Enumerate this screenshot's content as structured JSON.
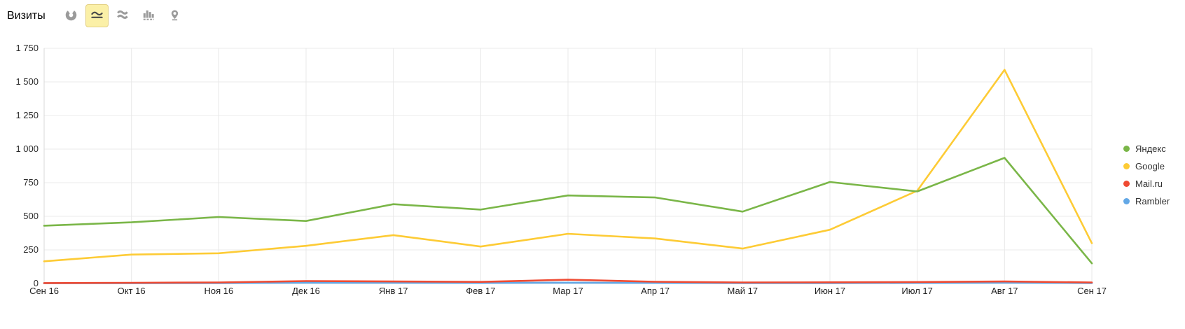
{
  "header": {
    "title": "Визиты",
    "toolbar": [
      {
        "icon": "pie-chart-icon",
        "selected": false
      },
      {
        "icon": "line-chart-icon",
        "selected": true
      },
      {
        "icon": "stacked-area-icon",
        "selected": false
      },
      {
        "icon": "column-chart-icon",
        "selected": false
      },
      {
        "icon": "map-pin-icon",
        "selected": false
      }
    ]
  },
  "chart_data": {
    "type": "line",
    "title": "Визиты",
    "x_labels": [
      "Сен 16",
      "Окт 16",
      "Ноя 16",
      "Дек 16",
      "Янв 17",
      "Фев 17",
      "Мар 17",
      "Апр 17",
      "Май 17",
      "Июн 17",
      "Июл 17",
      "Авг 17",
      "Сен 17"
    ],
    "y_tick_labels": [
      "1 750",
      "1 500",
      "1 250",
      "1 000",
      "750",
      "500",
      "250",
      "0"
    ],
    "ylim": [
      0,
      1750
    ],
    "y_tick_step": 250,
    "grid": true,
    "legend_position": "right",
    "series": [
      {
        "name": "Яндекс",
        "color": "#7AB648",
        "values": [
          430,
          455,
          495,
          465,
          590,
          550,
          655,
          640,
          535,
          755,
          685,
          935,
          150
        ]
      },
      {
        "name": "Google",
        "color": "#FDCB35",
        "values": [
          165,
          215,
          225,
          280,
          360,
          275,
          370,
          335,
          260,
          400,
          690,
          1590,
          300
        ]
      },
      {
        "name": "Mail.ru",
        "color": "#EF4A32",
        "values": [
          3,
          5,
          8,
          18,
          15,
          12,
          28,
          13,
          8,
          9,
          11,
          15,
          8
        ]
      },
      {
        "name": "Rambler",
        "color": "#63A8E6",
        "values": [
          2,
          2,
          3,
          6,
          5,
          4,
          6,
          4,
          3,
          3,
          4,
          6,
          3
        ]
      }
    ],
    "colors": {
      "grid": "#EBEBEB",
      "axis": "#C9C9C9",
      "vgrid": "#E8E8E8"
    }
  }
}
